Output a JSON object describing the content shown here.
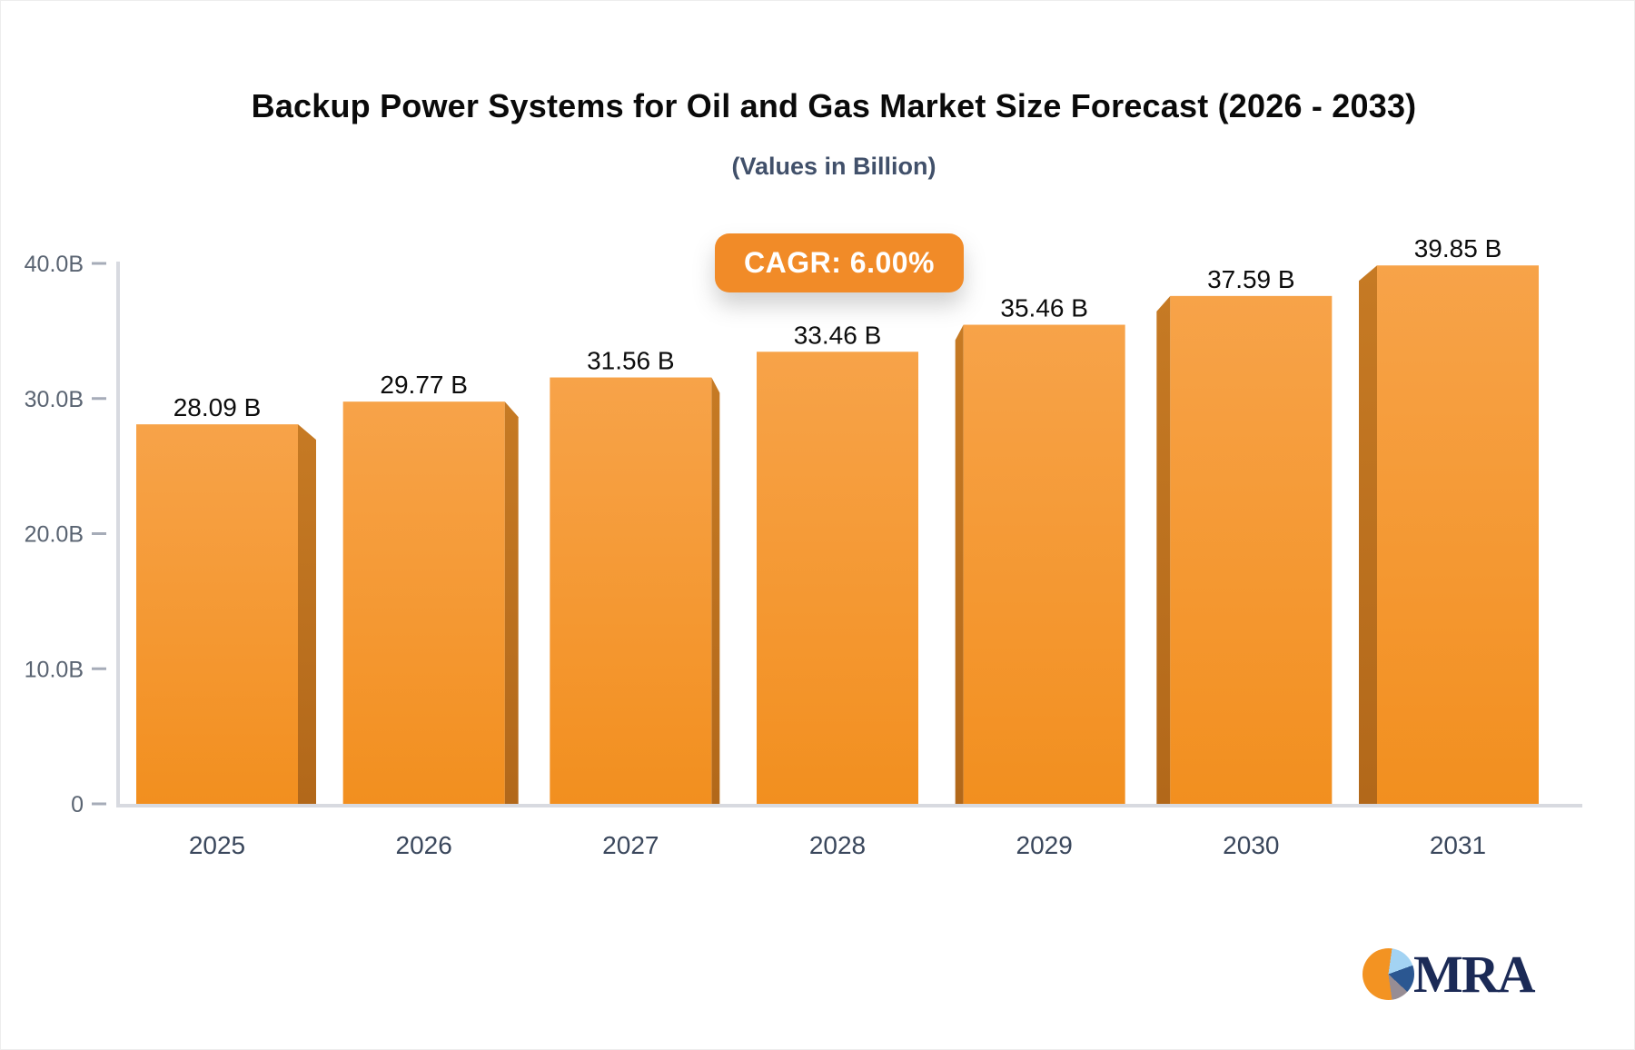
{
  "badge": {
    "label": "CAGR: 6.00%"
  },
  "chart_data": {
    "type": "bar",
    "title": "Backup Power Systems for Oil and Gas Market Size Forecast (2026 - 2033)",
    "subtitle": "(Values in Billion)",
    "categories": [
      "2025",
      "2026",
      "2027",
      "2028",
      "2029",
      "2030",
      "2031"
    ],
    "values": [
      28.09,
      29.77,
      31.56,
      33.46,
      35.46,
      37.59,
      39.85
    ],
    "value_labels": [
      "28.09 B",
      "29.77 B",
      "31.56 B",
      "33.46 B",
      "35.46 B",
      "37.59 B",
      "39.85 B"
    ],
    "xlabel": "",
    "ylabel": "",
    "ylim": [
      0,
      40
    ],
    "yticks": [
      {
        "v": 40,
        "label": "40.0B"
      },
      {
        "v": 30,
        "label": "30.0B"
      },
      {
        "v": 20,
        "label": "20.0B"
      },
      {
        "v": 10,
        "label": "10.0B"
      },
      {
        "v": 0,
        "label": "0"
      }
    ],
    "grid": false,
    "legend": false,
    "bar_style": "3d",
    "colors": {
      "bar_top": "#F7A349",
      "bar_bottom": "#F28F1F",
      "side_top": "#C67A24",
      "side_bottom": "#B2681A",
      "axis_line": "#D8DAE0",
      "tick_dash": "#A6ACB8",
      "y_label": "#5A6472",
      "x_label": "#3A475C",
      "value_label": "#0d0d0d"
    }
  },
  "logo": {
    "text": "MRA",
    "text_color": "#1b2a56",
    "pie_colors": {
      "orange": "#F39322",
      "light_blue": "#A3D3F3",
      "blue": "#2B5791",
      "gray": "#978D94"
    }
  }
}
